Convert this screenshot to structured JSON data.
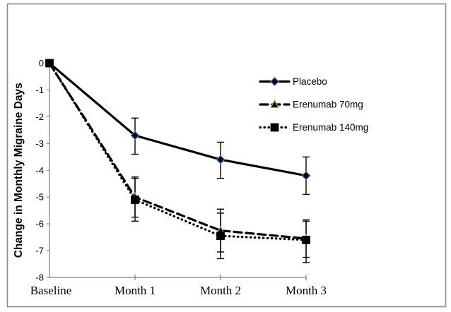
{
  "figure": {
    "background": "#ffffff",
    "border_color": "#8c8c8c",
    "axis_color": "#7f7f7f",
    "text_color": "#000000"
  },
  "chart_data": {
    "type": "line",
    "title": "",
    "xlabel": "",
    "ylabel": "Change in Monthly Migraine Days",
    "categories": [
      "Baseline",
      "Month 1",
      "Month 2",
      "Month 3"
    ],
    "ylim": [
      -8,
      0
    ],
    "yticks": [
      0,
      -1,
      -2,
      -3,
      -4,
      -5,
      -6,
      -7,
      -8
    ],
    "grid": false,
    "legend_position": "inside-upper-right",
    "error_bars": true,
    "series": [
      {
        "name": "Placebo",
        "values": [
          0,
          -2.7,
          -3.6,
          -4.2
        ],
        "error_upper": [
          null,
          -2.05,
          -2.95,
          -3.5
        ],
        "error_lower": [
          null,
          -3.4,
          -4.3,
          -4.9
        ],
        "line_style": "solid",
        "line_color": "#000000",
        "marker": "diamond",
        "marker_fill": "#000000",
        "marker_edge": "#4472c4"
      },
      {
        "name": "Erenumab 70mg",
        "values": [
          0,
          -5.0,
          -6.25,
          -6.55
        ],
        "error_upper": [
          null,
          -4.25,
          -5.45,
          -5.85
        ],
        "error_lower": [
          null,
          -5.75,
          -7.05,
          -7.25
        ],
        "line_style": "dashed",
        "line_color": "#000000",
        "marker": "triangle",
        "marker_fill": "#000000",
        "marker_edge": "#9bbb59"
      },
      {
        "name": "Erenumab 140mg",
        "values": [
          0,
          -5.1,
          -6.45,
          -6.6
        ],
        "error_upper": [
          null,
          -4.3,
          -5.6,
          -5.9
        ],
        "error_lower": [
          null,
          -5.9,
          -7.3,
          -7.45
        ],
        "line_style": "dotted",
        "line_color": "#000000",
        "marker": "square",
        "marker_fill": "#000000",
        "marker_edge": "#000000"
      }
    ]
  }
}
